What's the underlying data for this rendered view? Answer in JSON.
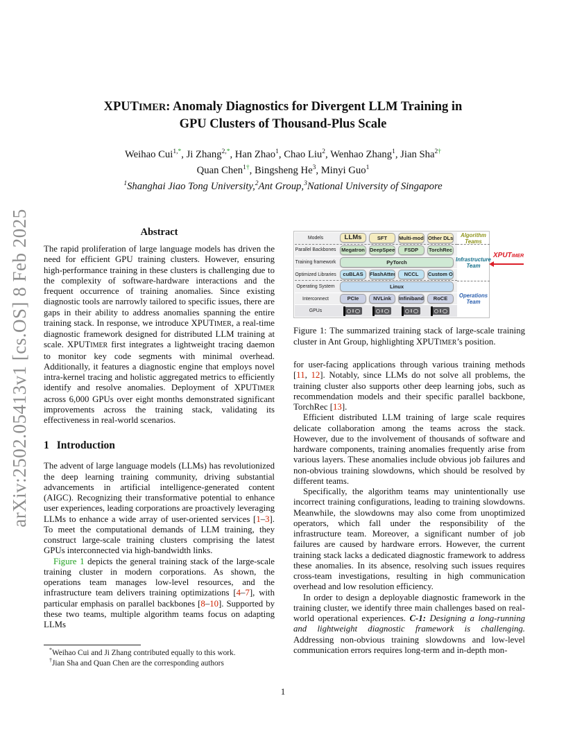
{
  "watermark": {
    "text": "arXiv:2502.05413v1  [cs.OS]  8 Feb 2025"
  },
  "title": {
    "part1": "XPUT",
    "part1_sc": "IMER",
    "part2": ": Anomaly Diagnostics for Divergent LLM Training in",
    "line2": "GPU Clusters of Thousand-Plus Scale"
  },
  "authors": {
    "line1": [
      {
        "name": "Weihao Cui",
        "sup": [
          {
            "t": "1,"
          },
          {
            "t": "*",
            "c": "green"
          }
        ]
      },
      {
        "name": "Ji Zhang",
        "sup": [
          {
            "t": "2,"
          },
          {
            "t": "*",
            "c": "green"
          }
        ]
      },
      {
        "name": "Han Zhao",
        "sup": [
          {
            "t": "1"
          }
        ]
      },
      {
        "name": "Chao Liu",
        "sup": [
          {
            "t": "2"
          }
        ]
      },
      {
        "name": "Wenhao Zhang",
        "sup": [
          {
            "t": "1"
          }
        ]
      },
      {
        "name": "Jian Sha",
        "sup": [
          {
            "t": "2"
          },
          {
            "t": "†",
            "c": "green"
          }
        ]
      }
    ],
    "line2": [
      {
        "name": "Quan Chen",
        "sup": [
          {
            "t": "1"
          },
          {
            "t": "†",
            "c": "green"
          }
        ]
      },
      {
        "name": "Bingsheng He",
        "sup": [
          {
            "t": "3"
          }
        ]
      },
      {
        "name": "Minyi Guo",
        "sup": [
          {
            "t": "1"
          }
        ]
      }
    ],
    "affiliations": [
      {
        "sup": "1",
        "text": "Shanghai Jiao Tong University,"
      },
      {
        "sup": "2",
        "text": "Ant Group,"
      },
      {
        "sup": "3",
        "text": "National University of Singapore"
      }
    ]
  },
  "abstract": {
    "heading": "Abstract",
    "text": [
      {
        "t": "The rapid proliferation of large language models has driven the need for efficient GPU training clusters. However, ensuring high-performance training in these clusters is challenging due to the complexity of software-hardware interactions and the frequent occurrence of training anomalies. Since existing diagnostic tools are narrowly tailored to specific issues, there are gaps in their ability to address anomalies spanning the entire training stack. In response, we introduce "
      },
      {
        "t": "XPUT"
      },
      {
        "t": "IMER",
        "c": "sc"
      },
      {
        "t": ", a real-time diagnostic framework designed for distributed LLM training at scale. "
      },
      {
        "t": "XPUT"
      },
      {
        "t": "IMER",
        "c": "sc"
      },
      {
        "t": " first integrates a lightweight tracing daemon to monitor key code segments with minimal overhead. Additionally, it features a diagnostic engine that employs novel intra-kernel tracing and holistic aggregated metrics to efficiently identify and resolve anomalies. Deployment of "
      },
      {
        "t": "XPUT"
      },
      {
        "t": "IMER",
        "c": "sc"
      },
      {
        "t": " across 6,000 GPUs over eight months demonstrated significant improvements across the training stack, validating its effectiveness in real-world scenarios."
      }
    ]
  },
  "intro": {
    "number": "1",
    "heading": "Introduction",
    "p1": [
      {
        "t": "The advent of large language models (LLMs) has revolutionized the deep learning training community, driving substantial advancements in artificial intelligence-generated content (AIGC). Recognizing their transformative potential to enhance user experiences, leading corporations are proactively leveraging LLMs to enhance a wide array of user-oriented services ["
      },
      {
        "t": "1",
        "c": "red"
      },
      {
        "t": "–"
      },
      {
        "t": "3",
        "c": "red"
      },
      {
        "t": "]. To meet the computational demands of LLM training, they construct large-scale training clusters comprising the latest GPUs interconnected via high-bandwidth links."
      }
    ],
    "p2": [
      {
        "t": "Figure 1",
        "c": "green"
      },
      {
        "t": " depicts the general training stack of the large-scale training cluster in modern corporations. As shown, the operations team manages low-level resources, and the infrastructure team delivers training optimizations ["
      },
      {
        "t": "4",
        "c": "red"
      },
      {
        "t": "–"
      },
      {
        "t": "7",
        "c": "red"
      },
      {
        "t": "], with particular emphasis on parallel backbones ["
      },
      {
        "t": "8",
        "c": "red"
      },
      {
        "t": "–"
      },
      {
        "t": "10",
        "c": "red"
      },
      {
        "t": "]. Supported by these two teams, multiple algorithm teams focus on adapting LLMs"
      }
    ]
  },
  "figure": {
    "rows": [
      {
        "label": "Models",
        "type": "boxes",
        "color": "#f5ecc0",
        "dash": true,
        "items": [
          {
            "t": "LLMs",
            "big": true
          },
          {
            "t": "SFT"
          },
          {
            "t": "Multi-modal"
          },
          {
            "t": "Other DLs"
          }
        ]
      },
      {
        "label": "Parallel Backbones",
        "type": "boxes",
        "color": "#cde7c9",
        "items": [
          {
            "t": "Megatron"
          },
          {
            "t": "DeepSpeed"
          },
          {
            "t": "FSDP"
          },
          {
            "t": "TorchRec"
          }
        ]
      },
      {
        "label": "Training framework",
        "type": "wide",
        "color": "#cfe9d4",
        "item": "PyTorch"
      },
      {
        "label": "Optimized Libraries",
        "type": "boxes",
        "color": "#bfe2f2",
        "dash": true,
        "items": [
          {
            "t": "cuBLAS"
          },
          {
            "t": "FlashAttention"
          },
          {
            "t": "NCCL"
          },
          {
            "t": "Custom OPs"
          }
        ]
      },
      {
        "label": "Operating System",
        "type": "wide",
        "color": "#c3dcf2",
        "item": "Linux"
      },
      {
        "label": "Interconnect",
        "type": "boxes",
        "color": "#cad0e4",
        "items": [
          {
            "t": "PCIe"
          },
          {
            "t": "NVLink"
          },
          {
            "t": "Infiniband"
          },
          {
            "t": "RoCE"
          }
        ]
      },
      {
        "label": "GPUs",
        "type": "gpus",
        "count": 4,
        "gpus": true
      }
    ],
    "teams": [
      {
        "lines": [
          "Algorithm",
          "Teams"
        ],
        "color": "#8f941c",
        "span": 1,
        "dash": true
      },
      {
        "lines": [
          "Infrastructure",
          "Team"
        ],
        "color": "#15708b",
        "span": 3,
        "dash": true
      },
      {
        "lines": [
          "Operations",
          "Team"
        ],
        "color": "#2b5fae",
        "span": 3
      }
    ],
    "xputimer": {
      "prefix": "XPUT",
      "sc": "IMER"
    }
  },
  "caption": [
    {
      "t": "Figure 1: The summarized training stack of large-scale training cluster in Ant Group, highlighting "
    },
    {
      "t": "XPUT"
    },
    {
      "t": "IMER",
      "c": "sc"
    },
    {
      "t": "’s position."
    }
  ],
  "right": {
    "p1": [
      {
        "t": "for user-facing applications through various training methods ["
      },
      {
        "t": "11",
        "c": "red"
      },
      {
        "t": ", "
      },
      {
        "t": "12",
        "c": "red"
      },
      {
        "t": "]. Notably, since LLMs do not solve all problems, the training cluster also supports other deep learning jobs, such as recommendation models and their specific parallel backbone, TorchRec ["
      },
      {
        "t": "13",
        "c": "red"
      },
      {
        "t": "]."
      }
    ],
    "p2": [
      {
        "t": "Efficient distributed LLM training of large scale requires delicate collaboration among the teams across the stack. However, due to the involvement of thousands of software and hardware components, training anomalies frequently arise from various layers. These anomalies include obvious job failures and non-obvious training slowdowns, which should be resolved by different teams."
      }
    ],
    "p3": [
      {
        "t": "Specifically, the algorithm teams may unintentionally use incorrect training configurations, leading to training slowdowns. Meanwhile, the slowdowns may also come from unoptimized operators, which fall under the responsibility of the infrastructure team. Moreover, a significant number of job failures are caused by hardware errors. However, the current training stack lacks a dedicated diagnostic framework to address these anomalies. In its absence, resolving such issues requires cross-team investigations, resulting in high communication overhead and low resolution efficiency."
      }
    ],
    "p4": [
      {
        "t": "In order to design a deployable diagnostic framework in the training cluster, we identify three main challenges based on real-world operational experiences. "
      },
      {
        "t": "C-1:",
        "c": "bi"
      },
      {
        "t": " Designing a long-running and lightweight diagnostic framework is challenging.",
        "c": "i"
      },
      {
        "t": " Addressing non-obvious training slowdowns and low-level communication errors requires long-term and in-depth mon-"
      }
    ]
  },
  "footnotes": [
    {
      "mark": "*",
      "text": "Weihao Cui and Ji Zhang contributed equally to this work."
    },
    {
      "mark": "†",
      "text": "Jian Sha and Quan Chen are the corresponding authors"
    }
  ],
  "page_number": "1",
  "colors": {
    "citation_red": "#cc2200",
    "link_green": "#21a121",
    "xputimer_red": "#dc1e28",
    "watermark_gray": "#8e8e8e"
  }
}
